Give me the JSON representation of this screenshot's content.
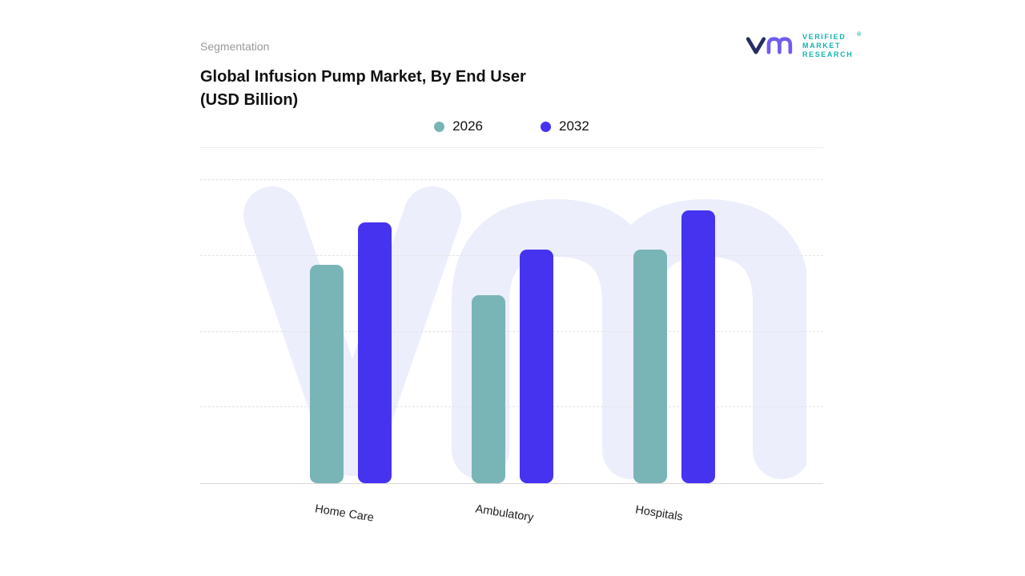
{
  "header": {
    "eyebrow": "Segmentation",
    "title_line1": "Global Infusion Pump Market, By End User",
    "title_line2": "(USD Billion)"
  },
  "logo": {
    "text_lines": [
      "VERIFIED",
      "MARKET",
      "RESEARCH"
    ],
    "registered_mark": "®",
    "mark_color_v": "#252e63",
    "mark_color_m": "#6f5cf2",
    "text_color": "#16b3af"
  },
  "legend": {
    "items": [
      {
        "label": "2026",
        "color": "#79b4b6"
      },
      {
        "label": "2032",
        "color": "#4633f0"
      }
    ]
  },
  "chart_data": {
    "type": "bar",
    "title": "Global Infusion Pump Market, By End User (USD Billion)",
    "categories": [
      "Home Care",
      "Ambulatory",
      "Hospitals"
    ],
    "series": [
      {
        "name": "2026",
        "color": "#79b4b6",
        "values": [
          7.2,
          6.2,
          7.7
        ]
      },
      {
        "name": "2032",
        "color": "#4633f0",
        "values": [
          8.6,
          7.7,
          9.0
        ]
      }
    ],
    "ylabel": "",
    "xlabel": "",
    "ylim": [
      0,
      10
    ],
    "gridlines": [
      2.5,
      5,
      7.5,
      10
    ],
    "grid_style": "dashed",
    "legend_position": "top",
    "y_axis_labels_visible": false,
    "watermark_color": "#eceefb"
  }
}
